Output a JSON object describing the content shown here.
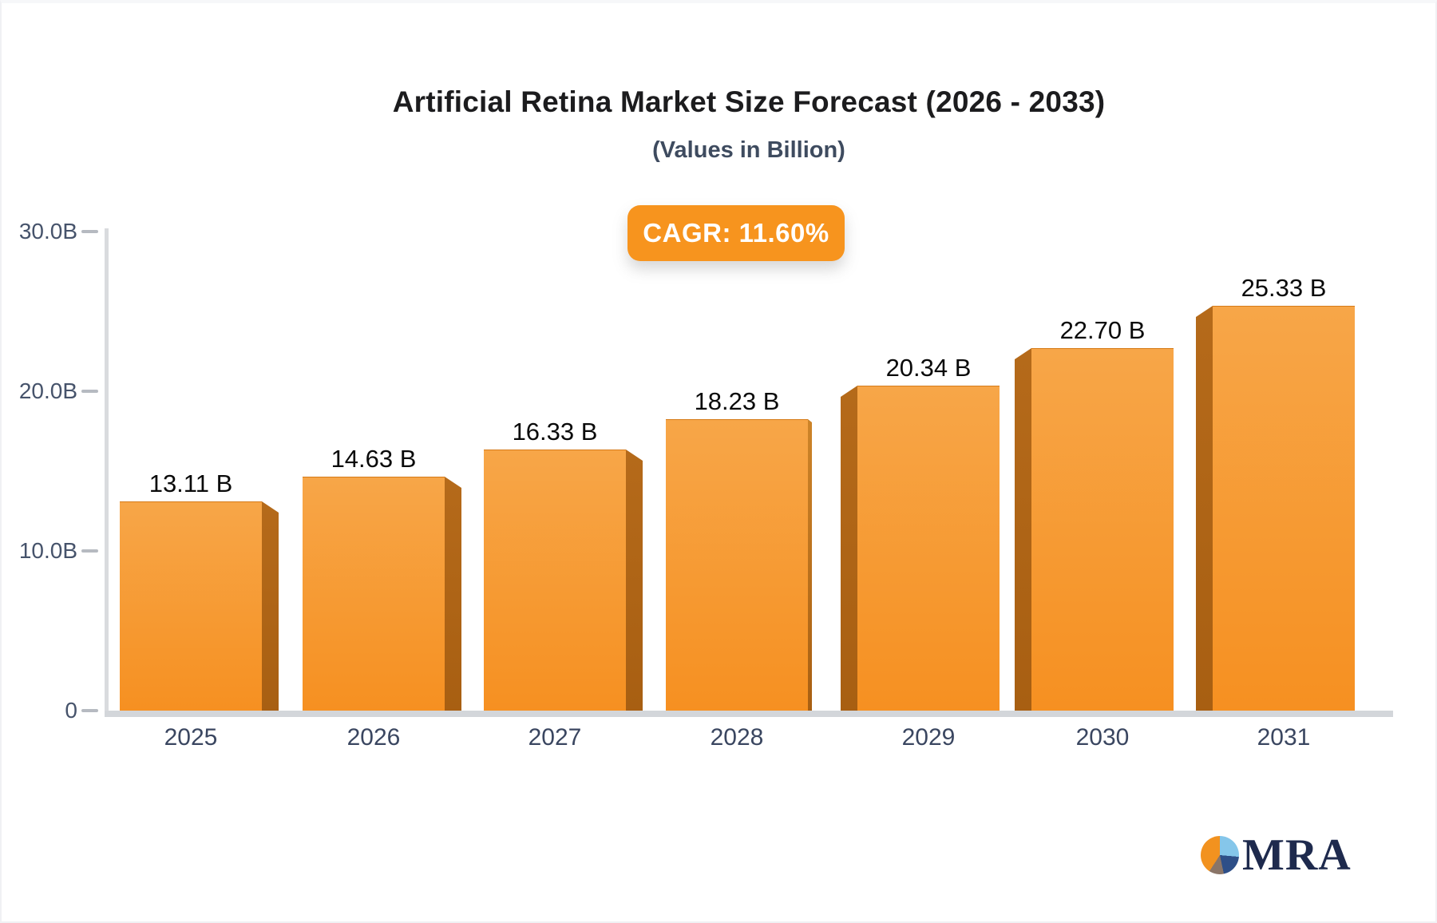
{
  "header": {
    "title": "Artificial Retina Market Size Forecast (2026 - 2033)",
    "subtitle": "(Values in Billion)"
  },
  "cagr_badge": {
    "label": "CAGR: 11.60%",
    "bg": "#f7941e",
    "text_color": "#ffffff"
  },
  "chart_data": {
    "type": "bar",
    "title": "Artificial Retina Market Size Forecast (2026 - 2033)",
    "subtitle": "(Values in Billion)",
    "categories": [
      "2025",
      "2026",
      "2027",
      "2028",
      "2029",
      "2030",
      "2031"
    ],
    "values": [
      13.11,
      14.63,
      16.33,
      18.23,
      20.34,
      22.7,
      25.33
    ],
    "value_labels": [
      "13.11 B",
      "14.63 B",
      "16.33 B",
      "18.23 B",
      "20.34 B",
      "22.70 B",
      "25.33 B"
    ],
    "ylim": [
      0,
      30
    ],
    "yticks": [
      {
        "value": 30,
        "label": "30.0B"
      },
      {
        "value": 20,
        "label": "20.0B"
      },
      {
        "value": 10,
        "label": "10.0B"
      },
      {
        "value": 0,
        "label": "0"
      }
    ],
    "grid": false,
    "legend_position": "none",
    "bar_colors": {
      "face_top": "#f7a648",
      "face_bottom": "#f69021",
      "side": "#b56a1a",
      "side_dark_bottom": "#a85f12",
      "thin_edge": "#cd8429"
    },
    "axis_color": "#d9dbde",
    "baseline_color": "#d3d6da",
    "tick_label_color": "#46536b",
    "value_label_color": "#0a0a0a"
  },
  "logo": {
    "text": "MRA",
    "text_color": "#1e2a4d",
    "pie_colors": {
      "orange": "#f2921f",
      "light_blue": "#85c6ea",
      "navy": "#2e4f88",
      "taupe": "#8a7568"
    }
  }
}
